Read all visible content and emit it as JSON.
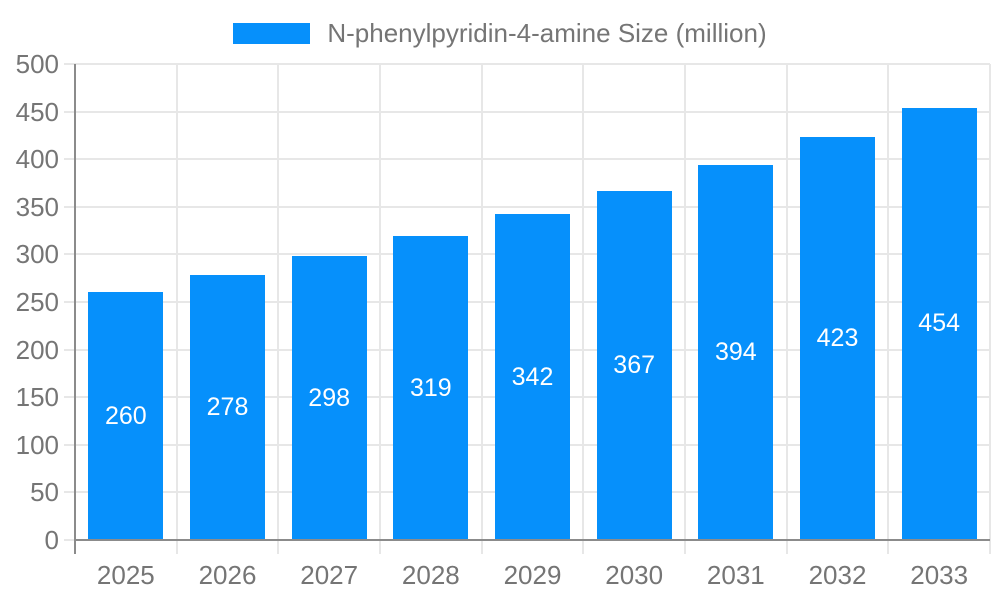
{
  "chart_data": {
    "type": "bar",
    "title": "N-phenylpyridin-4-amine Size (million)",
    "categories": [
      "2025",
      "2026",
      "2027",
      "2028",
      "2029",
      "2030",
      "2031",
      "2032",
      "2033"
    ],
    "values": [
      260,
      278,
      298,
      319,
      342,
      367,
      394,
      423,
      454
    ],
    "xlabel": "",
    "ylabel": "",
    "ylim": [
      0,
      500
    ],
    "y_ticks": [
      0,
      50,
      100,
      150,
      200,
      250,
      300,
      350,
      400,
      450,
      500
    ],
    "grid": true,
    "legend_position": "top",
    "colors": {
      "bar": "#0690fb",
      "grid": "#e7e7e7",
      "axis": "#8b8b8b",
      "tick_text": "#757575",
      "value_text": "#ffffff",
      "background": "#ffffff"
    }
  }
}
